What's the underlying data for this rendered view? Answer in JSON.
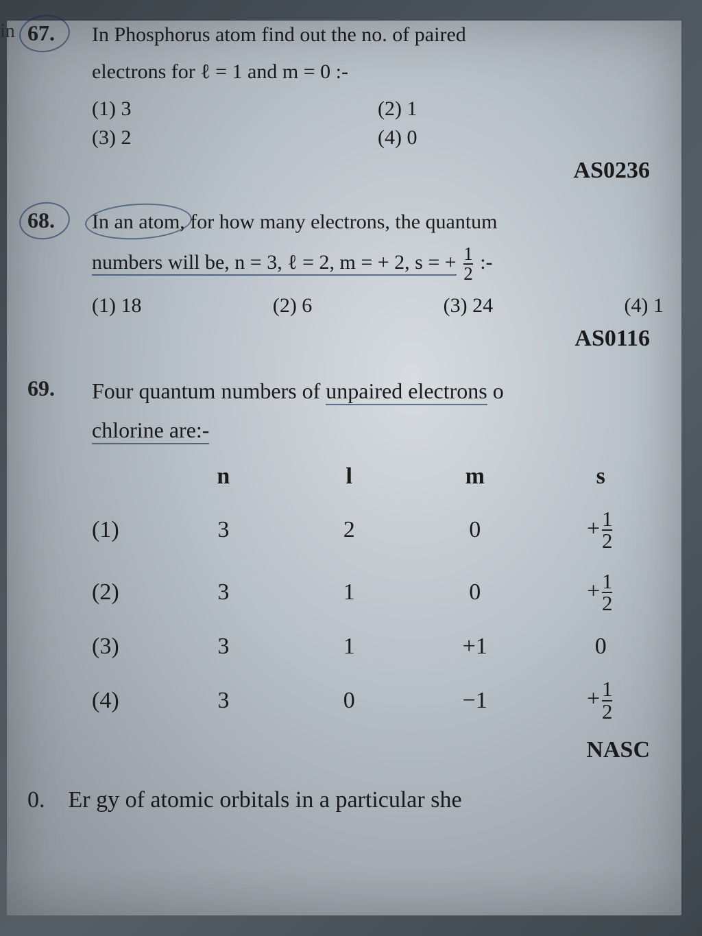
{
  "margin": "in",
  "q67": {
    "number": "67.",
    "text_l1": "In Phosphorus atom find out the no. of paired",
    "text_l2": "electrons for ℓ = 1 and m = 0 :-",
    "opt1": "(1) 3",
    "opt2": "(2) 1",
    "opt3": "(3) 2",
    "opt4": "(4) 0",
    "code": "AS0236"
  },
  "q68": {
    "number": "68.",
    "text_prefix": "In an atom,",
    "text_rest": " for how many electrons, the quantum",
    "text_l2a": "numbers will be, n = 3, ℓ = 2, m = + 2, s = +",
    "text_l2_colon": " :-",
    "frac_num": "1",
    "frac_den": "2",
    "opt1": "(1) 18",
    "opt2": "(2) 6",
    "opt3": "(3) 24",
    "opt4": "(4) 1",
    "code": "AS0116"
  },
  "q69": {
    "number": "69.",
    "text_l1": "Four quantum numbers of unpaired electrons o",
    "text_l2": "chlorine are:-",
    "headers": {
      "n": "n",
      "l": "l",
      "m": "m",
      "s": "s"
    },
    "rows": [
      {
        "label": "(1)",
        "n": "3",
        "l": "2",
        "m": "0",
        "s_sign": "+",
        "s_num": "1",
        "s_den": "2"
      },
      {
        "label": "(2)",
        "n": "3",
        "l": "1",
        "m": "0",
        "s_sign": "+",
        "s_num": "1",
        "s_den": "2"
      },
      {
        "label": "(3)",
        "n": "3",
        "l": "1",
        "m": "+1",
        "s_plain": "0"
      },
      {
        "label": "(4)",
        "n": "3",
        "l": "0",
        "m": "−1",
        "s_sign": "+",
        "s_num": "1",
        "s_den": "2"
      }
    ],
    "code": "NASC"
  },
  "bottom": {
    "number": "0.",
    "text": "Er   gy of atomic orbitals in a particular she"
  }
}
